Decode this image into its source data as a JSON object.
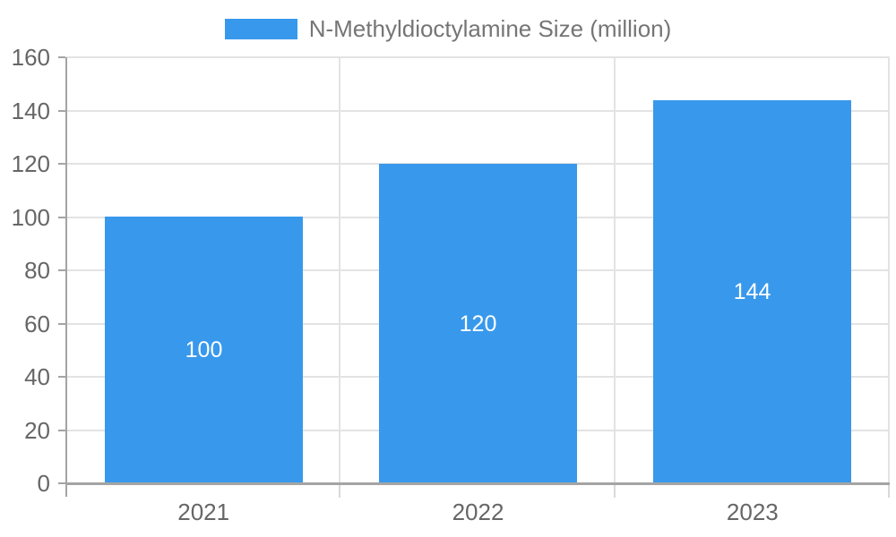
{
  "chart_data": {
    "type": "bar",
    "title": "N-Methyldioctylamine Size (million)",
    "legend": [
      "N-Methyldioctylamine Size (million)"
    ],
    "legend_position": "top",
    "categories": [
      "2021",
      "2022",
      "2023"
    ],
    "values": [
      100,
      120,
      144
    ],
    "xlabel": "",
    "ylabel": "",
    "ylim": [
      0,
      160
    ],
    "ytick_step": 20,
    "ytick_labels": [
      "0",
      "20",
      "40",
      "60",
      "80",
      "100",
      "120",
      "140",
      "160"
    ],
    "grid": true,
    "bar_labels_visible": true,
    "colors": {
      "bar": "#3899EC",
      "bar_label": "#FFFFFF",
      "grid": "#E3E3E3",
      "axis": "#A4A4A4",
      "boundary_tick": "#D9D9D9",
      "tick_label": "#666666",
      "legend_text": "#757575"
    }
  }
}
